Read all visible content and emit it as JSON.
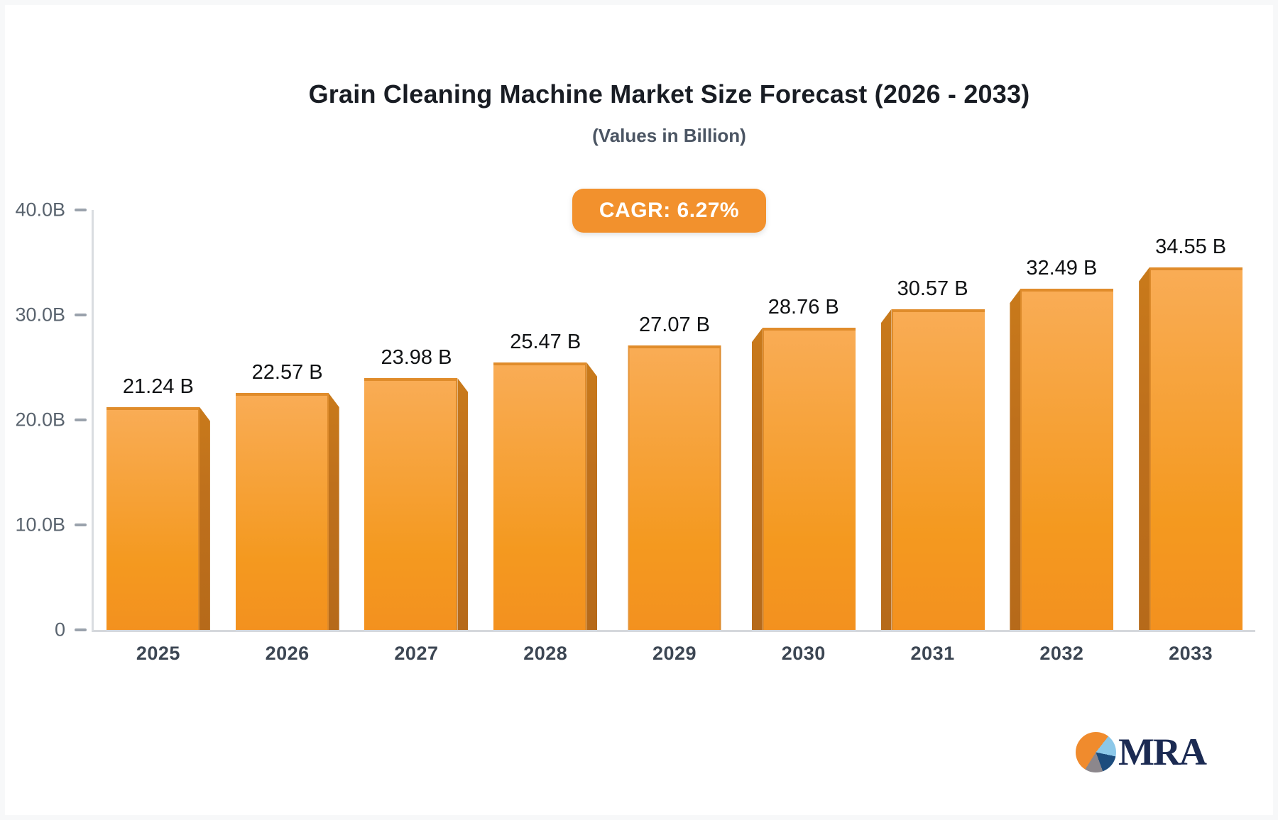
{
  "page": {
    "title": "Grain Cleaning Machine Market Size Forecast (2026 - 2033)",
    "subtitle": "(Values in Billion)",
    "badge_label": "CAGR: 6.27%"
  },
  "chart_data": {
    "type": "bar",
    "title": "Grain Cleaning Machine Market Size Forecast (2026 - 2033)",
    "subtitle": "(Values in Billion)",
    "cagr_annotation": "CAGR: 6.27%",
    "categories": [
      "2025",
      "2026",
      "2027",
      "2028",
      "2029",
      "2030",
      "2031",
      "2032",
      "2033"
    ],
    "values": [
      21.24,
      22.57,
      23.98,
      25.47,
      27.07,
      28.76,
      30.57,
      32.49,
      34.55
    ],
    "value_labels": [
      "21.24 B",
      "22.57 B",
      "23.98 B",
      "25.47 B",
      "27.07 B",
      "28.76 B",
      "30.57 B",
      "32.49 B",
      "34.55 B"
    ],
    "unit": "Billion",
    "xlabel": "",
    "ylabel": "",
    "ylim": [
      0,
      40
    ],
    "ytick_labels": [
      "40.0B",
      "30.0B",
      "20.0B",
      "10.0B",
      "0"
    ],
    "ytick_values": [
      40,
      30,
      20,
      10,
      0
    ],
    "grid": false,
    "legend": "none",
    "colors": {
      "bar_gradient_top": "#F9AC55",
      "bar_gradient_bottom": "#F3911F",
      "bar_side_face": "#BE701C",
      "badge_background": "#F2912D",
      "axis_line": "#d5d8dc",
      "title_text": "#191d24",
      "axis_label_text": "#3c4653"
    }
  },
  "logo": {
    "text": "MRA",
    "colors": {
      "orange": "#F08B2D",
      "light_blue": "#8CC8E9",
      "navy_slice": "#1C4C7D",
      "gray": "#8C878C",
      "text_navy": "#1B2A52"
    }
  }
}
